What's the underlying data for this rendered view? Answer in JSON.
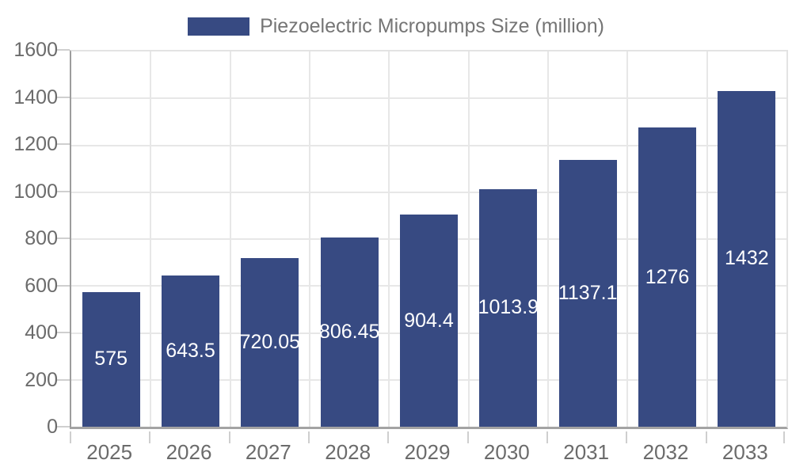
{
  "legend": {
    "label": "Piezoelectric Micropumps Size (million)"
  },
  "chart_data": {
    "type": "bar",
    "title": "Piezoelectric Micropumps Size (million)",
    "categories": [
      "2025",
      "2026",
      "2027",
      "2028",
      "2029",
      "2030",
      "2031",
      "2032",
      "2033"
    ],
    "values": [
      575,
      643.5,
      720.05,
      806.45,
      904.4,
      1013.9,
      1137.1,
      1276,
      1432
    ],
    "value_labels": [
      "575",
      "643.5",
      "720.05",
      "806.45",
      "904.4",
      "1013.9",
      "1137.1",
      "1276",
      "1432"
    ],
    "series": [
      {
        "name": "Piezoelectric Micropumps Size (million)",
        "values": [
          575,
          643.5,
          720.05,
          806.45,
          904.4,
          1013.9,
          1137.1,
          1276,
          1432
        ]
      }
    ],
    "xlabel": "",
    "ylabel": "",
    "ylim": [
      0,
      1600
    ],
    "yticks": [
      0,
      200,
      400,
      600,
      800,
      1000,
      1200,
      1400,
      1600
    ],
    "grid": true,
    "legend_position": "top-center",
    "value_labels_position": "inside-center"
  },
  "colors": {
    "bar": "#374A82",
    "value_label": "#ffffff",
    "grid": "#e7e7e7",
    "axis_left": "#9d9d9d",
    "axis_bottom": "#a3a3a3",
    "plot_border": "#e3e3e3",
    "tick_mark": "#cfcfcf",
    "tick_label": "#6b6b6b",
    "legend_text": "#757575",
    "background": "#ffffff"
  }
}
